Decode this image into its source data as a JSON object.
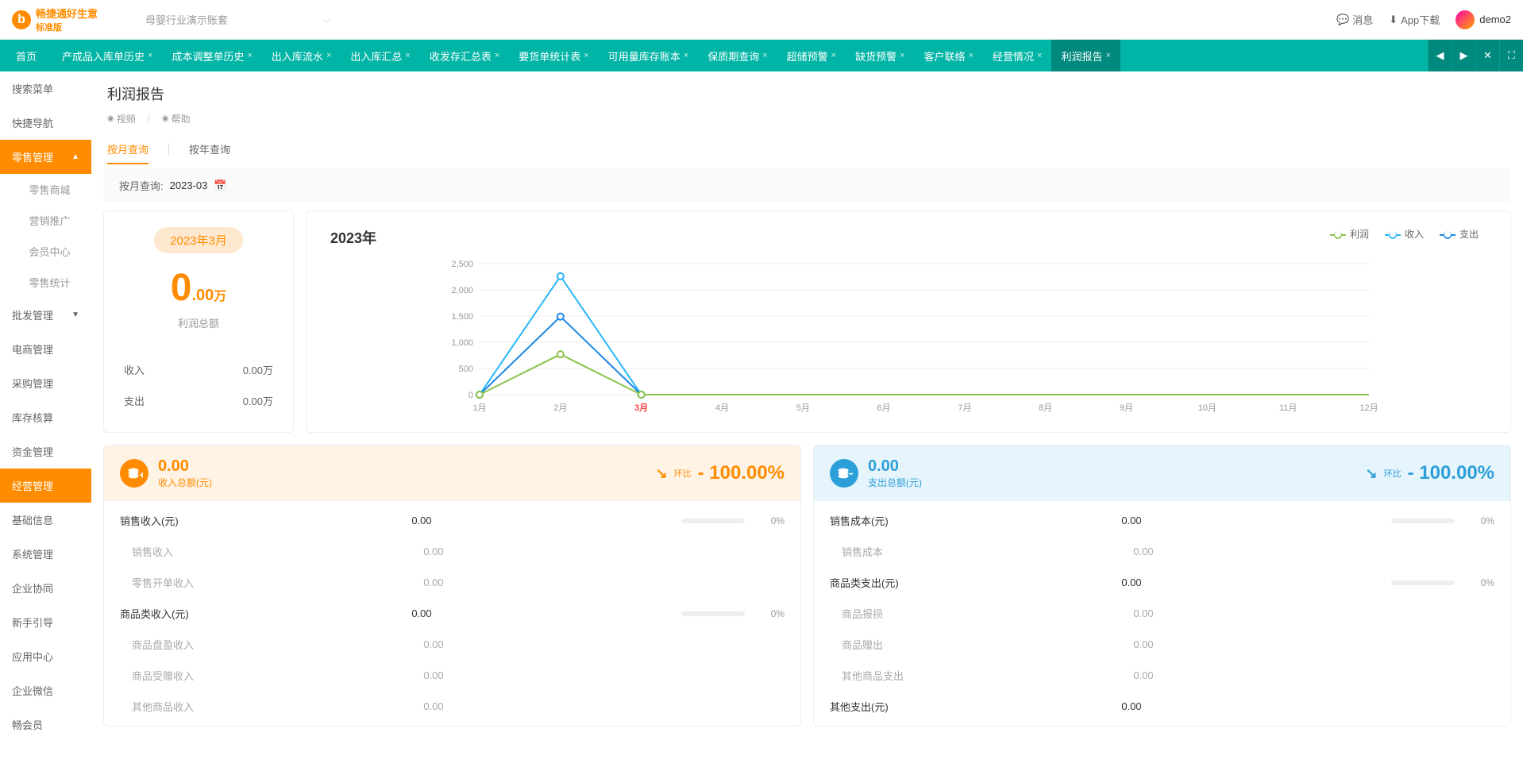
{
  "header": {
    "logo_text": "畅捷通好生意",
    "logo_sub": "标准版",
    "company": "母婴行业演示账套",
    "links": {
      "message": "消息",
      "app": "App下载"
    },
    "user": "demo2"
  },
  "tabs": {
    "home": "首页",
    "items": [
      {
        "label": "产成品入库单历史"
      },
      {
        "label": "成本调整单历史"
      },
      {
        "label": "出入库流水"
      },
      {
        "label": "出入库汇总"
      },
      {
        "label": "收发存汇总表"
      },
      {
        "label": "要货单统计表"
      },
      {
        "label": "可用量库存账本"
      },
      {
        "label": "保质期查询"
      },
      {
        "label": "超储预警"
      },
      {
        "label": "缺货预警"
      },
      {
        "label": "客户联络"
      },
      {
        "label": "经营情况"
      },
      {
        "label": "利润报告",
        "active": true
      }
    ]
  },
  "sidebar": {
    "search": "搜索菜单",
    "items": [
      {
        "label": "快捷导航"
      },
      {
        "label": "零售管理",
        "expanded": true,
        "children": [
          "零售商城",
          "营销推广",
          "会员中心",
          "零售统计"
        ]
      },
      {
        "label": "批发管理",
        "caret": true
      },
      {
        "label": "电商管理"
      },
      {
        "label": "采购管理"
      },
      {
        "label": "库存核算"
      },
      {
        "label": "资金管理"
      },
      {
        "label": "经营管理",
        "active": true
      },
      {
        "label": "基础信息"
      },
      {
        "label": "系统管理"
      },
      {
        "label": "企业协同"
      },
      {
        "label": "新手引导"
      },
      {
        "label": "应用中心"
      },
      {
        "label": "企业微信"
      },
      {
        "label": "畅会员"
      }
    ]
  },
  "page": {
    "title": "利润报告",
    "links": {
      "video": "视频",
      "help": "帮助"
    },
    "sub_tabs": {
      "monthly": "按月查询",
      "yearly": "按年查询"
    },
    "filter": {
      "label": "按月查询:",
      "value": "2023-03"
    }
  },
  "kpi": {
    "period": "2023年3月",
    "value_int": "0",
    "value_dec": ".00",
    "unit": "万",
    "label": "利润总额",
    "rows": [
      {
        "label": "收入",
        "value": "0.00万"
      },
      {
        "label": "支出",
        "value": "0.00万"
      }
    ]
  },
  "chart": {
    "title": "2023年",
    "legend": [
      {
        "label": "利润",
        "color": "#8bc34a"
      },
      {
        "label": "收入",
        "color": "#29b6f6"
      },
      {
        "label": "支出",
        "color": "#1e88e5"
      }
    ],
    "x_labels": [
      "1月",
      "2月",
      "3月",
      "4月",
      "5月",
      "6月",
      "7月",
      "8月",
      "9月",
      "10月",
      "11月",
      "12月"
    ],
    "x_active_index": 2,
    "y_ticks": [
      0,
      500,
      1000,
      1500,
      2000,
      2500
    ],
    "ylim": [
      0,
      2500
    ],
    "series": {
      "profit": [
        0,
        770,
        0,
        0,
        0,
        0,
        0,
        0,
        0,
        0,
        0,
        0
      ],
      "income": [
        0,
        2260,
        0,
        0,
        0,
        0,
        0,
        0,
        0,
        0,
        0,
        0
      ],
      "expense": [
        0,
        1490,
        0,
        0,
        0,
        0,
        0,
        0,
        0,
        0,
        0,
        0
      ]
    },
    "grid_color": "#eeeeee",
    "background_color": "#ffffff"
  },
  "income_card": {
    "amount": "0.00",
    "sublabel": "收入总额(元)",
    "trend_label": "环比",
    "trend_value": "- 100.00%",
    "rows": [
      {
        "label": "销售收入(元)",
        "value": "0.00",
        "pct": "0%",
        "sub": false,
        "show_bar": true
      },
      {
        "label": "销售收入",
        "value": "0.00",
        "sub": true
      },
      {
        "label": "零售开单收入",
        "value": "0.00",
        "sub": true
      },
      {
        "label": "商品类收入(元)",
        "value": "0.00",
        "pct": "0%",
        "sub": false,
        "show_bar": true
      },
      {
        "label": "商品盘盈收入",
        "value": "0.00",
        "sub": true
      },
      {
        "label": "商品受赠收入",
        "value": "0.00",
        "sub": true
      },
      {
        "label": "其他商品收入",
        "value": "0.00",
        "sub": true
      }
    ]
  },
  "expense_card": {
    "amount": "0.00",
    "sublabel": "支出总额(元)",
    "trend_label": "环比",
    "trend_value": "- 100.00%",
    "rows": [
      {
        "label": "销售成本(元)",
        "value": "0.00",
        "pct": "0%",
        "sub": false,
        "show_bar": true
      },
      {
        "label": "销售成本",
        "value": "0.00",
        "sub": true
      },
      {
        "label": "商品类支出(元)",
        "value": "0.00",
        "pct": "0%",
        "sub": false,
        "show_bar": true
      },
      {
        "label": "商品报损",
        "value": "0.00",
        "sub": true
      },
      {
        "label": "商品赠出",
        "value": "0.00",
        "sub": true
      },
      {
        "label": "其他商品支出",
        "value": "0.00",
        "sub": true
      },
      {
        "label": "其他支出(元)",
        "value": "0.00",
        "sub": false
      }
    ]
  }
}
